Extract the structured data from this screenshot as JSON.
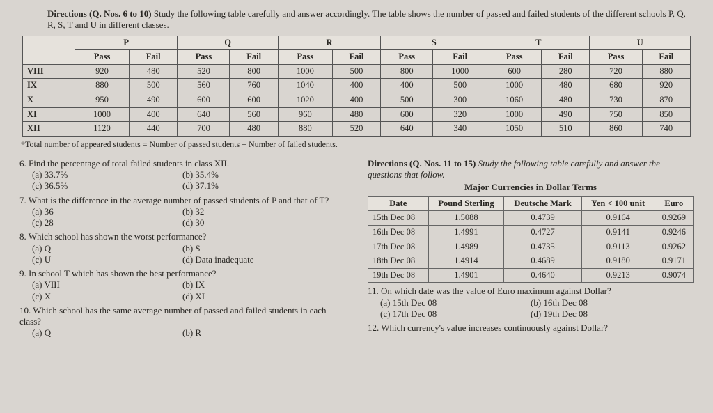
{
  "intro_lead": "Directions (Q. Nos. 6 to 10)",
  "intro_body": "Study the following table carefully and answer accordingly. The table shows the number of passed and failed students of the different schools P, Q, R, S, T and U in different classes.",
  "schools": {
    "names": [
      "P",
      "Q",
      "R",
      "S",
      "T",
      "U"
    ],
    "sub": [
      "Pass",
      "Fail"
    ],
    "rows": [
      "VIII",
      "IX",
      "X",
      "XI",
      "XII"
    ],
    "data": [
      [
        920,
        480,
        520,
        800,
        1000,
        500,
        800,
        1000,
        600,
        280,
        720,
        880
      ],
      [
        880,
        500,
        560,
        760,
        1040,
        400,
        400,
        500,
        1000,
        480,
        680,
        920
      ],
      [
        950,
        490,
        600,
        600,
        1020,
        400,
        500,
        300,
        1060,
        480,
        730,
        870
      ],
      [
        1000,
        400,
        640,
        560,
        960,
        480,
        600,
        320,
        1000,
        490,
        750,
        850
      ],
      [
        1120,
        440,
        700,
        480,
        880,
        520,
        640,
        340,
        1050,
        510,
        860,
        740
      ]
    ]
  },
  "footnote": "*Total number of appeared students = Number of passed students + Number of failed students.",
  "q6": {
    "text": "Find the percentage of total failed students in class XII.",
    "a": "33.7%",
    "b": "35.4%",
    "c": "36.5%",
    "d": "37.1%"
  },
  "q7": {
    "text": "What is the difference in the average number of passed students of P and that of T?",
    "a": "36",
    "b": "32",
    "c": "28",
    "d": "30"
  },
  "q8": {
    "text": "Which school has shown the worst performance?",
    "a": "Q",
    "b": "S",
    "c": "U",
    "d": "Data inadequate"
  },
  "q9": {
    "text": "In school T which has shown the best performance?",
    "a": "VIII",
    "b": "IX",
    "c": "X",
    "d": "XI"
  },
  "q10": {
    "text": "Which school has the same average number of passed and failed students in each class?",
    "a": "Q",
    "b": "R"
  },
  "dirs2": "Directions (Q. Nos. 11 to 15)",
  "dirs2_body": "Study the following table carefully and answer the questions that follow.",
  "cur_title": "Major Currencies in Dollar Terms",
  "cur": {
    "head": [
      "Date",
      "Pound Sterling",
      "Deutsche Mark",
      "Yen < 100 unit",
      "Euro"
    ],
    "rows": [
      [
        "15th Dec 08",
        "1.5088",
        "0.4739",
        "0.9164",
        "0.9269"
      ],
      [
        "16th Dec 08",
        "1.4991",
        "0.4727",
        "0.9141",
        "0.9246"
      ],
      [
        "17th Dec 08",
        "1.4989",
        "0.4735",
        "0.9113",
        "0.9262"
      ],
      [
        "18th Dec 08",
        "1.4914",
        "0.4689",
        "0.9180",
        "0.9171"
      ],
      [
        "19th Dec 08",
        "1.4901",
        "0.4640",
        "0.9213",
        "0.9074"
      ]
    ]
  },
  "q11": {
    "text": "On which date was the value of Euro maximum against Dollar?",
    "a": "15th Dec 08",
    "b": "16th Dec 08",
    "c": "17th Dec 08",
    "d": "19th Dec 08"
  },
  "q12": {
    "text": "Which currency's value increases continuously against Dollar?"
  }
}
